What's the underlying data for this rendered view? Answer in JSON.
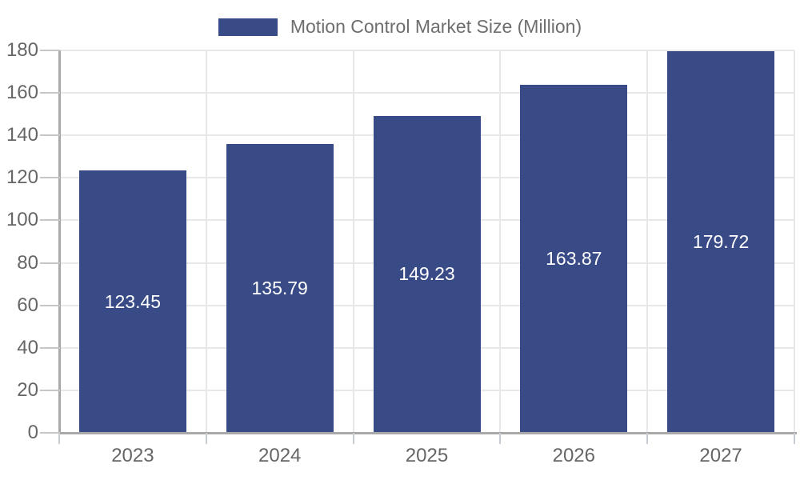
{
  "chart_data": {
    "type": "bar",
    "title": "Motion Control Market Size (Million)",
    "categories": [
      "2023",
      "2024",
      "2025",
      "2026",
      "2027"
    ],
    "series": [
      {
        "name": "Motion Control Market Size (Million)",
        "values": [
          123.45,
          135.79,
          149.23,
          163.87,
          179.72
        ]
      }
    ],
    "value_labels": [
      "123.45",
      "135.79",
      "149.23",
      "163.87",
      "179.72"
    ],
    "xlabel": "",
    "ylabel": "",
    "ylim": [
      0,
      180
    ],
    "yticks": [
      0,
      20,
      40,
      60,
      80,
      100,
      120,
      140,
      160,
      180
    ],
    "grid": true,
    "legend_position": "top-center"
  },
  "legend": {
    "label": "Motion Control Market Size (Million)"
  },
  "colors": {
    "bar": "#394b87",
    "bar-label": "#ffffff",
    "grid": "#e8e8e8",
    "axis": "#a9a9a9",
    "tick": "#c6c6c6",
    "xtick": "#c8ccd4",
    "tick-label": "#666666",
    "legend-text": "#6e6e6e",
    "background": "#ffffff"
  }
}
